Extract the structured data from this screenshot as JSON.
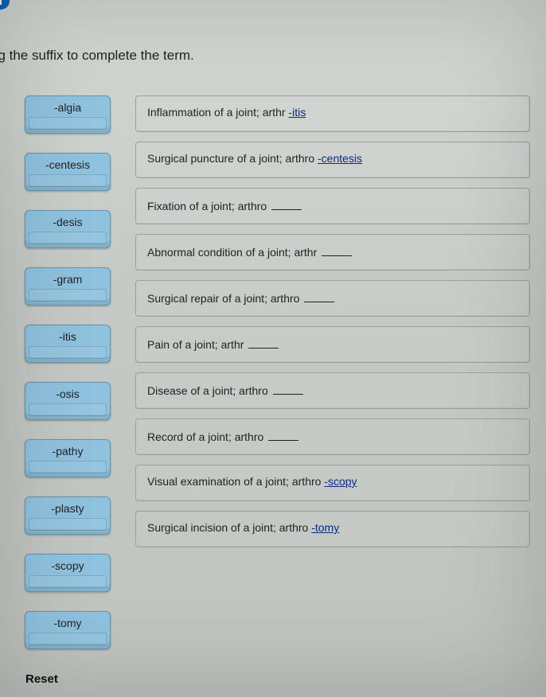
{
  "instruction": "ag the suffix to complete the term.",
  "icons": {
    "info_bg": "#0a66b5",
    "info_glyph": "i"
  },
  "suffixes": [
    "-algia",
    "-centesis",
    "-desis",
    "-gram",
    "-itis",
    "-osis",
    "-pathy",
    "-plasty",
    "-scopy",
    "-tomy"
  ],
  "definitions": [
    {
      "text": "Inflammation of a joint; arthr ",
      "answer": "-itis"
    },
    {
      "text": "Surgical puncture of a joint; arthro ",
      "answer": "-centesis"
    },
    {
      "text": "Fixation of a joint; arthro ",
      "answer": null
    },
    {
      "text": "Abnormal condition of a joint; arthr ",
      "answer": null
    },
    {
      "text": "Surgical repair of a joint; arthro ",
      "answer": null
    },
    {
      "text": "Pain of a joint; arthr ",
      "answer": null
    },
    {
      "text": "Disease of a joint; arthro ",
      "answer": null
    },
    {
      "text": "Record of a joint; arthro ",
      "answer": null
    },
    {
      "text": "Visual examination of a joint; arthro ",
      "answer": "-scopy"
    },
    {
      "text": "Surgical incision of a joint; arthro ",
      "answer": "-tomy"
    }
  ],
  "reset_label": "Reset",
  "colors": {
    "tile_bg": "#8fc2df",
    "tile_border": "#6a93a8",
    "link_color": "#0a2a8a",
    "page_bg": "#c8ccc8",
    "box_border": "#9aa09a"
  }
}
